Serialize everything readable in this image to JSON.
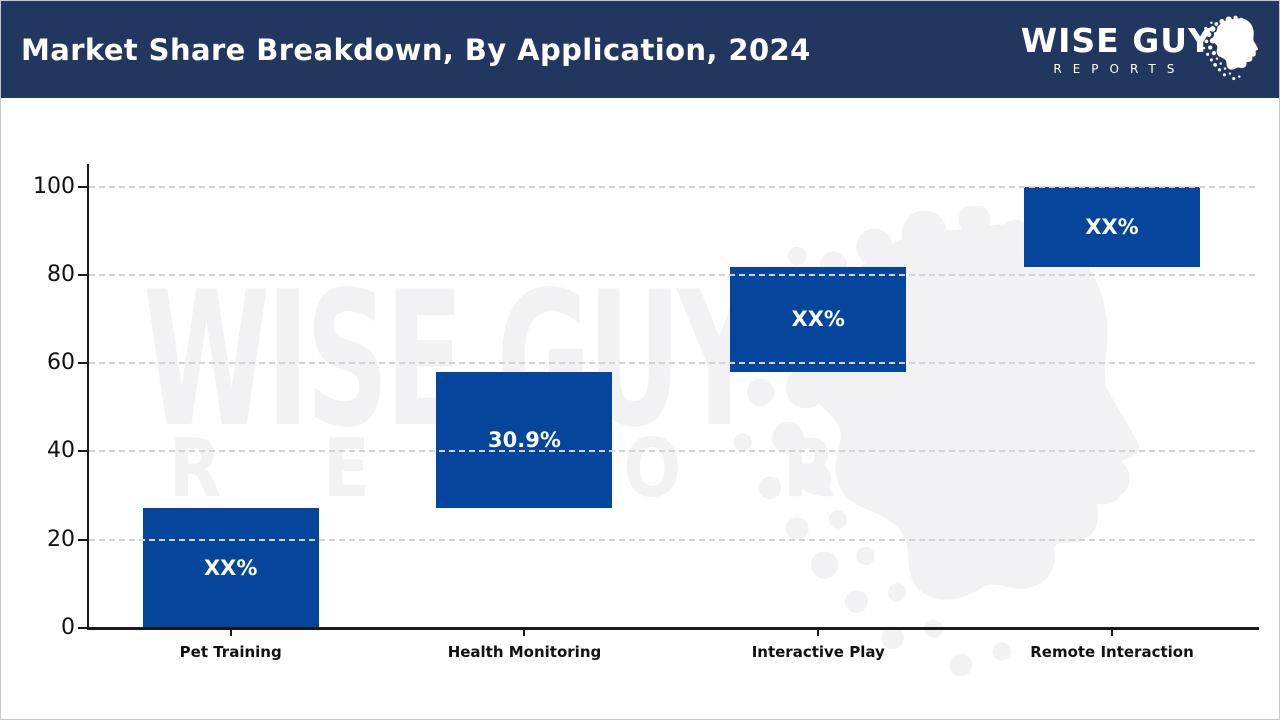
{
  "header": {
    "title": "Market Share Breakdown, By Application, 2024",
    "logo": {
      "icon": "wise-guy-dotted-head-icon",
      "line1": "WISE GUY",
      "line2": "REPORTS"
    }
  },
  "watermark": {
    "line1": "WISE GUY",
    "line2": "R E P O R T S",
    "icon": "wise-guy-dotted-head-watermark"
  },
  "colors": {
    "header_bg": "#223760",
    "bar": "#05459C",
    "bar_label": "#FFFFFF",
    "axis": "#1A1A1A",
    "grid": "#D2D2D2",
    "watermark": "#F2F2F4"
  },
  "chart_data": {
    "type": "bar",
    "subtype": "waterfall",
    "title": "Market Share Breakdown, By Application, 2024",
    "categories": [
      "Pet Training",
      "Health Monitoring",
      "Interactive Play",
      "Remote Interaction"
    ],
    "segments": [
      {
        "category": "Pet Training",
        "start": 0,
        "end": 27.2,
        "value": 27.2,
        "label": "XX%"
      },
      {
        "category": "Health Monitoring",
        "start": 27.2,
        "end": 58.1,
        "value": 30.9,
        "label": "30.9%"
      },
      {
        "category": "Interactive Play",
        "start": 58.1,
        "end": 81.7,
        "value": 23.6,
        "label": "XX%"
      },
      {
        "category": "Remote Interaction",
        "start": 81.7,
        "end": 100,
        "value": 18.3,
        "label": "XX%"
      }
    ],
    "xlabel": "",
    "ylabel": "",
    "ylim": [
      0,
      100
    ],
    "yticks": [
      0,
      20,
      40,
      60,
      80,
      100
    ],
    "grid": "horizontal-dashed",
    "legend": "none"
  }
}
